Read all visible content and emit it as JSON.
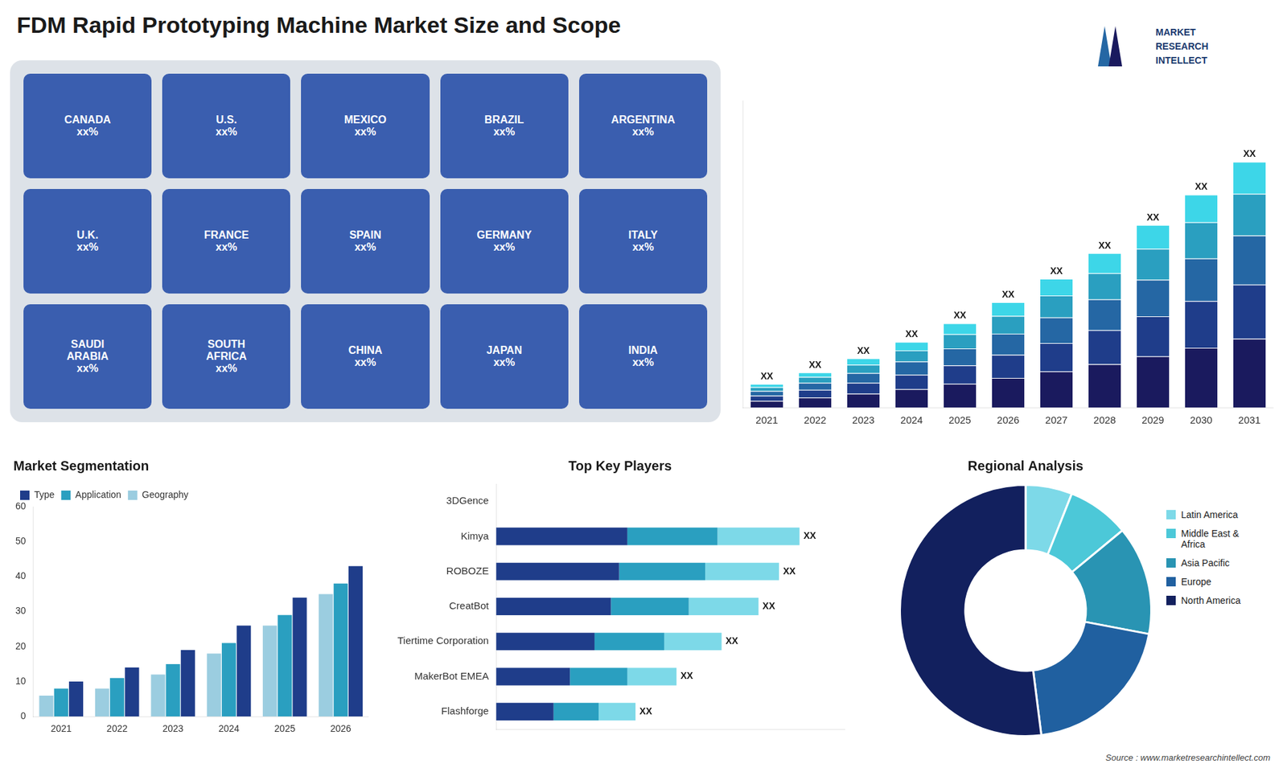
{
  "chart_data": [
    {
      "type": "bar",
      "title": "FDM Rapid Prototyping Machine Market Size and Scope",
      "categories": [
        "2021",
        "2022",
        "2023",
        "2024",
        "2025",
        "2026",
        "2027",
        "2028",
        "2029",
        "2030",
        "2031"
      ],
      "stacked": true,
      "series": [
        {
          "color": "#1a1a5e",
          "values": [
            0.28,
            0.42,
            0.588,
            0.784,
            1.008,
            1.26,
            1.54,
            1.848,
            2.184,
            2.548,
            2.94
          ]
        },
        {
          "color": "#1f3d8a",
          "values": [
            0.22,
            0.33,
            0.462,
            0.616,
            0.792,
            0.99,
            1.21,
            1.452,
            1.716,
            2.002,
            2.31
          ]
        },
        {
          "color": "#2567a4",
          "values": [
            0.2,
            0.3,
            0.42,
            0.56,
            0.72,
            0.9,
            1.1,
            1.32,
            1.56,
            1.82,
            2.1
          ]
        },
        {
          "color": "#2a9fc0",
          "values": [
            0.17,
            0.255,
            0.357,
            0.476,
            0.612,
            0.765,
            0.935,
            1.122,
            1.326,
            1.547,
            1.785
          ]
        },
        {
          "color": "#3dd6e8",
          "values": [
            0.13,
            0.195,
            0.273,
            0.364,
            0.468,
            0.585,
            0.715,
            0.858,
            1.014,
            1.183,
            1.365
          ]
        }
      ],
      "ylim": [
        0,
        13.125
      ],
      "tick_labels": "x",
      "grid": false,
      "annotations": [
        "XX",
        "XX",
        "XX",
        "XX",
        "XX",
        "XX",
        "XX",
        "XX",
        "XX",
        "XX",
        "XX"
      ]
    },
    {
      "type": "bar",
      "title": "Market Segmentation",
      "categories": [
        "2021",
        "2022",
        "2023",
        "2024",
        "2025",
        "2026"
      ],
      "series": [
        {
          "name": "Geography",
          "color": "#9bcde0",
          "values": [
            6,
            8,
            12,
            18,
            26,
            35
          ]
        },
        {
          "name": "Application",
          "color": "#2a9fc0",
          "values": [
            8,
            11,
            15,
            21,
            29,
            38
          ]
        },
        {
          "name": "Type",
          "color": "#1f3d8a",
          "values": [
            10,
            14,
            19,
            26,
            34,
            43
          ]
        }
      ],
      "ylim": [
        0,
        60
      ],
      "yticks": [
        0,
        10,
        20,
        30,
        40,
        50,
        60
      ],
      "grid": false,
      "legend": "upper left"
    },
    {
      "type": "bar",
      "title": "Top Key Players",
      "orientation": "horizontal",
      "stacked": true,
      "categories": [
        "3DGence",
        "Kimya",
        "ROBOZE",
        "CreatBot",
        "Tiertime Corporation",
        "MakerBot EMEA",
        "Flashforge"
      ],
      "series": [
        {
          "color": "#1f3d8a",
          "values": [
            0.0,
            0.32,
            0.3,
            0.28,
            0.24,
            0.18,
            0.14
          ]
        },
        {
          "color": "#2a9fc0",
          "values": [
            0.0,
            0.22,
            0.21,
            0.19,
            0.17,
            0.14,
            0.11
          ]
        },
        {
          "color": "#7dd9e8",
          "values": [
            0.0,
            0.2,
            0.18,
            0.17,
            0.14,
            0.12,
            0.09
          ]
        }
      ],
      "xlim": [
        0,
        0.85
      ],
      "tick_labels": "y",
      "grid": false,
      "annotations": [
        null,
        "XX",
        "XX",
        "XX",
        "XX",
        "XX",
        "XX"
      ]
    },
    {
      "type": "doughnut",
      "title": "Regional Analysis",
      "categories": [
        "Latin America",
        "Middle East &\nAfrica",
        "Asia Pacific",
        "Europe",
        "North America"
      ],
      "values": [
        6,
        8,
        14,
        20,
        52
      ],
      "colors": [
        "#7dd9e8",
        "#4cc8d8",
        "#2994b3",
        "#2060a0",
        "#12205e"
      ],
      "legend": "right"
    },
    {
      "type": "map",
      "annotations": [
        "CANADA\nxx%",
        "U.S.\nxx%",
        "MEXICO\nxx%",
        "BRAZIL\nxx%",
        "ARGENTINA\nxx%",
        "U.K.\nxx%",
        "FRANCE\nxx%",
        "SPAIN\nxx%",
        "GERMANY\nxx%",
        "ITALY\nxx%",
        "SAUDI\nARABIA\nxx%",
        "SOUTH\nAFRICA\nxx%",
        "CHINA\nxx%",
        "JAPAN\nxx%",
        "INDIA\nxx%"
      ]
    },
    {
      "type": "logo",
      "annotations": [
        "MARKET",
        "RESEARCH",
        "INTELLECT"
      ]
    },
    {
      "type": "note",
      "annotations": [
        "Source : www.marketresearchintellect.com"
      ]
    }
  ]
}
